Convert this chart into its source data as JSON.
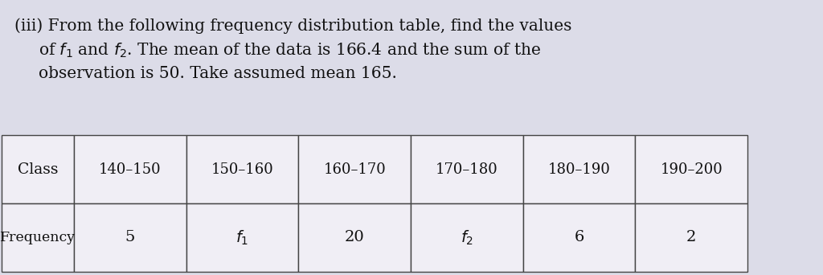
{
  "text_line1": "(iii) From the following frequency distribution table, find the values",
  "text_line2": "of $f_1$ and $f_2$. The mean of the data is 166.4 and the sum of the",
  "text_line3": "observation is 50. Take assumed mean 165.",
  "col_headers": [
    "Class",
    "140–150",
    "150–160",
    "160–170",
    "170–180",
    "180–190",
    "190–200"
  ],
  "row_label": "Frequency",
  "freq_values": [
    "5",
    "$f_1$",
    "20",
    "$f_2$",
    "6",
    "2"
  ],
  "bg_color": "#dcdce8",
  "table_bg": "#f0eef5",
  "text_color": "#111111",
  "border_color": "#444444",
  "figsize": [
    10.24,
    3.42
  ],
  "dpi": 100
}
